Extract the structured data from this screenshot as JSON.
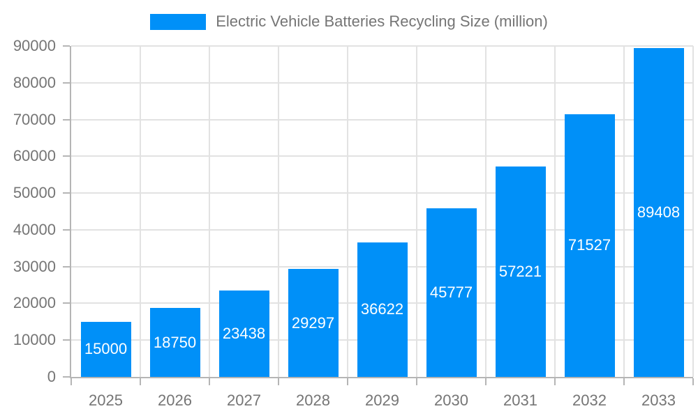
{
  "chart_data": {
    "type": "bar",
    "title": "Electric Vehicle Batteries Recycling Size (million)",
    "legend_entries": [
      "Electric Vehicle Batteries Recycling Size (million)"
    ],
    "legend_position": "top-center",
    "categories": [
      "2025",
      "2026",
      "2027",
      "2028",
      "2029",
      "2030",
      "2031",
      "2032",
      "2033"
    ],
    "values": [
      15000,
      18750,
      23438,
      29297,
      36622,
      45777,
      57221,
      71527,
      89408
    ],
    "value_labels_shown": true,
    "value_label_position": "inside-center",
    "xlabel": "",
    "ylabel": "",
    "ylim": [
      0,
      90000
    ],
    "yticks": [
      0,
      10000,
      20000,
      30000,
      40000,
      50000,
      60000,
      70000,
      80000,
      90000
    ],
    "grid": true,
    "colors": {
      "bar": "#0090F8",
      "value_label": "#ffffff",
      "axis_text": "#757575",
      "axis_line": "#b5b5b5",
      "gridline": "#e2e2e2",
      "background": "#ffffff"
    }
  }
}
